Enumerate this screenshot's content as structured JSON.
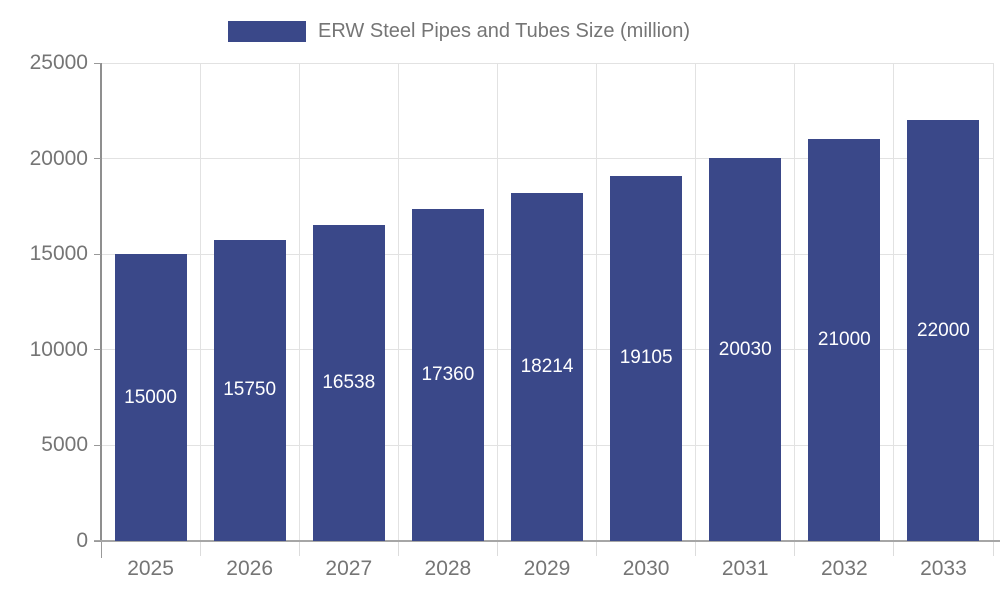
{
  "colors": {
    "bar": "#3A4889",
    "grid": "#E2E2E2",
    "axis": "#999999",
    "tick_label": "#757575",
    "bar_label": "#FFFFFF",
    "background": "#FFFFFF"
  },
  "chart_data": {
    "type": "bar",
    "title": "",
    "xlabel": "",
    "ylabel": "",
    "categories": [
      "2025",
      "2026",
      "2027",
      "2028",
      "2029",
      "2030",
      "2031",
      "2032",
      "2033"
    ],
    "series": [
      {
        "name": "ERW Steel Pipes and Tubes Size (million)",
        "values": [
          15000,
          15750,
          16538,
          17360,
          18214,
          19105,
          20030,
          21000,
          22000
        ]
      }
    ],
    "ylim": [
      0,
      25000
    ],
    "y_ticks": [
      0,
      5000,
      10000,
      15000,
      20000,
      25000
    ],
    "grid": true,
    "legend_position": "top",
    "bar_value_labels": "inside-center"
  }
}
